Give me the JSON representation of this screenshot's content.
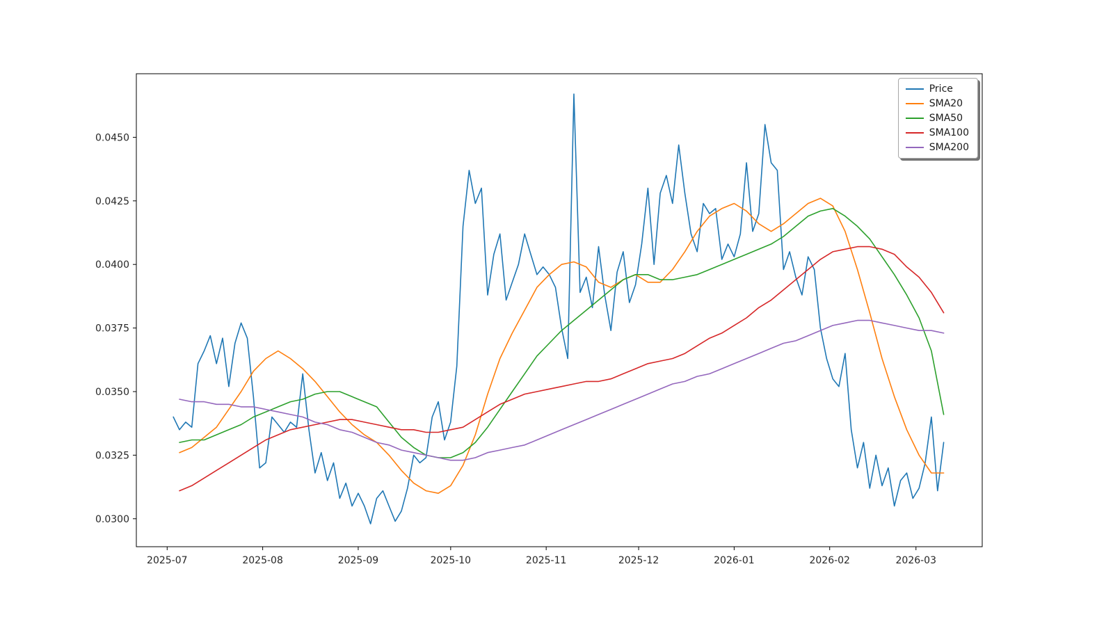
{
  "figure": {
    "background": "#ffffff",
    "spine_color": "#000000",
    "text_color": "#262626"
  },
  "legend": {
    "position": "top-right",
    "border_color": "#a6a6a6",
    "background": "#ffffff"
  },
  "chart_data": {
    "type": "line",
    "title": "",
    "xlabel": "",
    "ylabel": "",
    "grid": false,
    "x_unit": "days since 2025-07-01",
    "xlim": [
      -10,
      264.5
    ],
    "ylim": [
      0.0289,
      0.0475
    ],
    "x_ticks": [
      {
        "day": 0,
        "label": "2025-07"
      },
      {
        "day": 31,
        "label": "2025-08"
      },
      {
        "day": 62,
        "label": "2025-09"
      },
      {
        "day": 92,
        "label": "2025-10"
      },
      {
        "day": 123,
        "label": "2025-11"
      },
      {
        "day": 153,
        "label": "2025-12"
      },
      {
        "day": 184,
        "label": "2026-01"
      },
      {
        "day": 215,
        "label": "2026-02"
      },
      {
        "day": 243,
        "label": "2026-03"
      }
    ],
    "y_ticks": [
      {
        "value": 0.03,
        "label": "0.0300"
      },
      {
        "value": 0.0325,
        "label": "0.0325"
      },
      {
        "value": 0.035,
        "label": "0.0350"
      },
      {
        "value": 0.0375,
        "label": "0.0375"
      },
      {
        "value": 0.04,
        "label": "0.0400"
      },
      {
        "value": 0.0425,
        "label": "0.0425"
      },
      {
        "value": 0.045,
        "label": "0.0450"
      }
    ],
    "series": [
      {
        "name": "Price",
        "color": "#1f77b4",
        "x_start": 2,
        "x_step": 2,
        "values": [
          0.034,
          0.0335,
          0.0338,
          0.0336,
          0.0361,
          0.0366,
          0.0372,
          0.0361,
          0.0371,
          0.0352,
          0.0369,
          0.0377,
          0.0371,
          0.0348,
          0.032,
          0.0322,
          0.034,
          0.0337,
          0.0334,
          0.0338,
          0.0336,
          0.0357,
          0.0335,
          0.0318,
          0.0326,
          0.0315,
          0.0322,
          0.0308,
          0.0314,
          0.0305,
          0.031,
          0.0305,
          0.0298,
          0.0308,
          0.0311,
          0.0305,
          0.0299,
          0.0303,
          0.0312,
          0.0325,
          0.0322,
          0.0324,
          0.034,
          0.0346,
          0.0331,
          0.0338,
          0.036,
          0.0415,
          0.0437,
          0.0424,
          0.043,
          0.0388,
          0.0404,
          0.0412,
          0.0386,
          0.0393,
          0.04,
          0.0412,
          0.0404,
          0.0396,
          0.0399,
          0.0396,
          0.0391,
          0.0375,
          0.0363,
          0.0467,
          0.0389,
          0.0395,
          0.0383,
          0.0407,
          0.0388,
          0.0374,
          0.0397,
          0.0405,
          0.0385,
          0.0392,
          0.0408,
          0.043,
          0.04,
          0.0428,
          0.0435,
          0.0424,
          0.0447,
          0.0428,
          0.0412,
          0.0405,
          0.0424,
          0.042,
          0.0422,
          0.0402,
          0.0408,
          0.0403,
          0.0412,
          0.044,
          0.0413,
          0.042,
          0.0455,
          0.044,
          0.0437,
          0.0398,
          0.0405,
          0.0395,
          0.0388,
          0.0403,
          0.0398,
          0.0375,
          0.0363,
          0.0355,
          0.0352,
          0.0365,
          0.0335,
          0.032,
          0.033,
          0.0312,
          0.0325,
          0.0313,
          0.032,
          0.0305,
          0.0315,
          0.0318,
          0.0308,
          0.0312,
          0.0322,
          0.034,
          0.0311,
          0.033
        ]
      },
      {
        "name": "SMA20",
        "color": "#ff7f0e",
        "x_start": 4,
        "x_step": 4,
        "values": [
          0.0326,
          0.0328,
          0.0332,
          0.0336,
          0.0343,
          0.035,
          0.0358,
          0.0363,
          0.0366,
          0.0363,
          0.0359,
          0.0354,
          0.0348,
          0.0342,
          0.0337,
          0.0333,
          0.033,
          0.0325,
          0.0319,
          0.0314,
          0.0311,
          0.031,
          0.0313,
          0.0321,
          0.0333,
          0.0349,
          0.0363,
          0.0373,
          0.0382,
          0.0391,
          0.0396,
          0.04,
          0.0401,
          0.0399,
          0.0393,
          0.0391,
          0.0394,
          0.0396,
          0.0393,
          0.0393,
          0.0398,
          0.0405,
          0.0413,
          0.0419,
          0.0422,
          0.0424,
          0.0421,
          0.0416,
          0.0413,
          0.0416,
          0.042,
          0.0424,
          0.0426,
          0.0423,
          0.0413,
          0.0398,
          0.0381,
          0.0363,
          0.0348,
          0.0335,
          0.0325,
          0.0318,
          0.0318
        ]
      },
      {
        "name": "SMA50",
        "color": "#2ca02c",
        "x_start": 4,
        "x_step": 4,
        "values": [
          0.033,
          0.0331,
          0.0331,
          0.0333,
          0.0335,
          0.0337,
          0.034,
          0.0342,
          0.0344,
          0.0346,
          0.0347,
          0.0349,
          0.035,
          0.035,
          0.0348,
          0.0346,
          0.0344,
          0.0338,
          0.0332,
          0.0328,
          0.0325,
          0.0324,
          0.0324,
          0.0326,
          0.033,
          0.0336,
          0.0343,
          0.035,
          0.0357,
          0.0364,
          0.0369,
          0.0374,
          0.0378,
          0.0382,
          0.0386,
          0.039,
          0.0394,
          0.0396,
          0.0396,
          0.0394,
          0.0394,
          0.0395,
          0.0396,
          0.0398,
          0.04,
          0.0402,
          0.0404,
          0.0406,
          0.0408,
          0.0411,
          0.0415,
          0.0419,
          0.0421,
          0.0422,
          0.0419,
          0.0415,
          0.041,
          0.0403,
          0.0396,
          0.0388,
          0.0379,
          0.0366,
          0.0341
        ]
      },
      {
        "name": "SMA100",
        "color": "#d62728",
        "x_start": 4,
        "x_step": 4,
        "values": [
          0.0311,
          0.0313,
          0.0316,
          0.0319,
          0.0322,
          0.0325,
          0.0328,
          0.0331,
          0.0333,
          0.0335,
          0.0336,
          0.0337,
          0.0338,
          0.0339,
          0.0339,
          0.0338,
          0.0337,
          0.0336,
          0.0335,
          0.0335,
          0.0334,
          0.0334,
          0.0335,
          0.0336,
          0.0339,
          0.0342,
          0.0345,
          0.0347,
          0.0349,
          0.035,
          0.0351,
          0.0352,
          0.0353,
          0.0354,
          0.0354,
          0.0355,
          0.0357,
          0.0359,
          0.0361,
          0.0362,
          0.0363,
          0.0365,
          0.0368,
          0.0371,
          0.0373,
          0.0376,
          0.0379,
          0.0383,
          0.0386,
          0.039,
          0.0394,
          0.0398,
          0.0402,
          0.0405,
          0.0406,
          0.0407,
          0.0407,
          0.0406,
          0.0404,
          0.0399,
          0.0395,
          0.0389,
          0.0381
        ]
      },
      {
        "name": "SMA200",
        "color": "#9467bd",
        "x_start": 4,
        "x_step": 4,
        "values": [
          0.0347,
          0.0346,
          0.0346,
          0.0345,
          0.0345,
          0.0344,
          0.0344,
          0.0343,
          0.0342,
          0.0341,
          0.034,
          0.0338,
          0.0337,
          0.0335,
          0.0334,
          0.0332,
          0.033,
          0.0329,
          0.0327,
          0.0326,
          0.0325,
          0.0324,
          0.0323,
          0.0323,
          0.0324,
          0.0326,
          0.0327,
          0.0328,
          0.0329,
          0.0331,
          0.0333,
          0.0335,
          0.0337,
          0.0339,
          0.0341,
          0.0343,
          0.0345,
          0.0347,
          0.0349,
          0.0351,
          0.0353,
          0.0354,
          0.0356,
          0.0357,
          0.0359,
          0.0361,
          0.0363,
          0.0365,
          0.0367,
          0.0369,
          0.037,
          0.0372,
          0.0374,
          0.0376,
          0.0377,
          0.0378,
          0.0378,
          0.0377,
          0.0376,
          0.0375,
          0.0374,
          0.0374,
          0.0373
        ]
      }
    ]
  }
}
